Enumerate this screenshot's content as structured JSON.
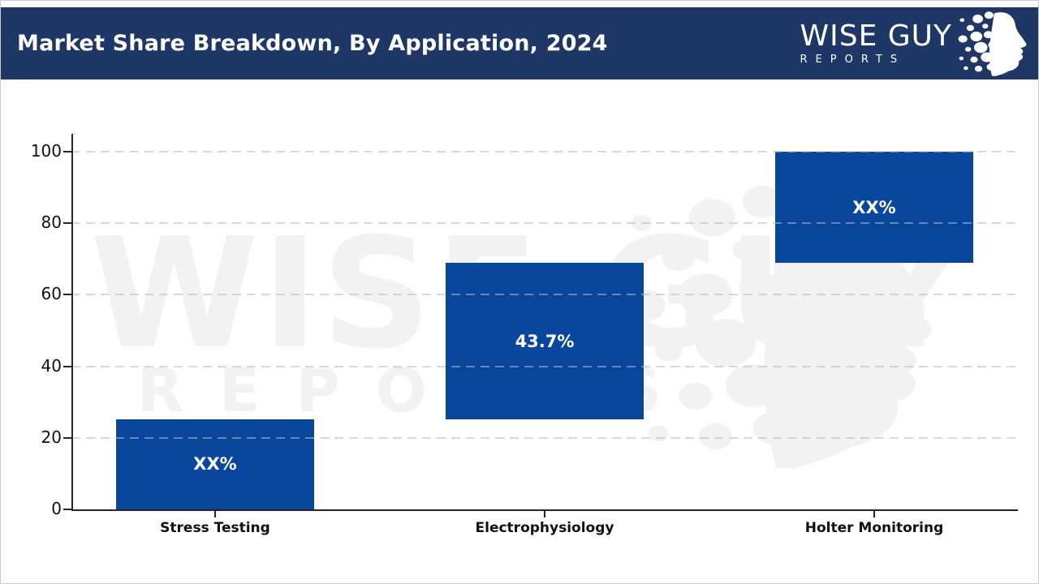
{
  "header": {
    "title": "Market Share Breakdown, By Application, 2024",
    "logo": {
      "line1": "WISE GUY",
      "line2": "REPORTS"
    }
  },
  "watermark": {
    "line1": "WISE GUY",
    "line2": "REPORTS"
  },
  "icons": {
    "logo_face": "dot-face-profile-icon"
  },
  "colors": {
    "header_bg": "#1e3766",
    "bar": "#09479f",
    "grid": "#d4d4d4",
    "axis": "#262626",
    "title_text": "#ffffff",
    "watermark": "#f2f2f5"
  },
  "chart_data": {
    "type": "bar",
    "subtype": "floating-segment-bars",
    "title": "Market Share Breakdown, By Application, 2024",
    "categories": [
      "Stress Testing",
      "Electrophysiology",
      "Holter Monitoring"
    ],
    "series": [
      {
        "name": "Market Share %",
        "segment_start": [
          0,
          25.2,
          68.9
        ],
        "segment_end": [
          25.2,
          68.9,
          100
        ],
        "values": [
          25.2,
          43.7,
          31.1
        ]
      }
    ],
    "bar_labels": [
      "XX%",
      "43.7%",
      "XX%"
    ],
    "xlabel": "",
    "ylabel": "",
    "yticks": [
      0,
      20,
      40,
      60,
      80,
      100
    ],
    "ylim": [
      0,
      105
    ],
    "grid": "horizontal-dashed",
    "legend": "none"
  }
}
